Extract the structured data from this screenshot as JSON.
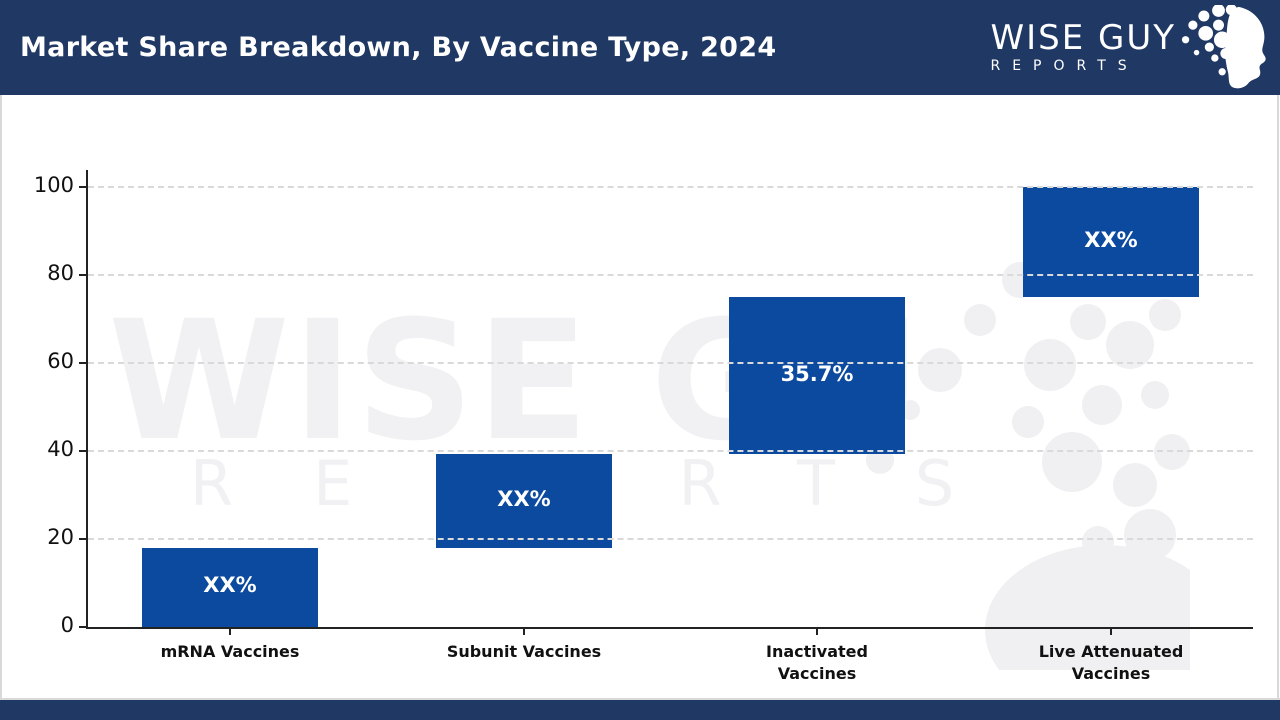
{
  "header": {
    "title": "Market Share Breakdown, By Vaccine Type, 2024",
    "logo": {
      "line1": "WISE GUY",
      "line2": "REPORTS"
    }
  },
  "watermark": {
    "line1": "WISE GU",
    "line2": "REPORTS"
  },
  "colors": {
    "header_bg": "#1f3864",
    "footer_bg": "#1f3864",
    "bar": "#0b4a9f",
    "grid": "#d9d9d9",
    "axis": "#222222",
    "watermark": "#f1f1f3",
    "bar_label_text": "#ffffff"
  },
  "chart_data": {
    "type": "bar",
    "variant": "waterfall",
    "title": "Market Share Breakdown, By Vaccine Type, 2024",
    "categories": [
      "mRNA Vaccines",
      "Subunit Vaccines",
      "Inactivated Vaccines",
      "Live Attenuated Vaccines"
    ],
    "segments": [
      {
        "start": 0,
        "end": 18,
        "label": "XX%"
      },
      {
        "start": 18,
        "end": 39.3,
        "label": "XX%"
      },
      {
        "start": 39.3,
        "end": 75,
        "label": "35.7%"
      },
      {
        "start": 75,
        "end": 100,
        "label": "XX%"
      }
    ],
    "values": [
      18,
      21.3,
      35.7,
      25
    ],
    "ylim": [
      0,
      100
    ],
    "yticks": [
      0,
      20,
      40,
      60,
      80,
      100
    ],
    "xlabel": "",
    "ylabel": "",
    "grid": "dashed-horizontal",
    "legend": "none",
    "bar_color": "#0b4a9f"
  }
}
